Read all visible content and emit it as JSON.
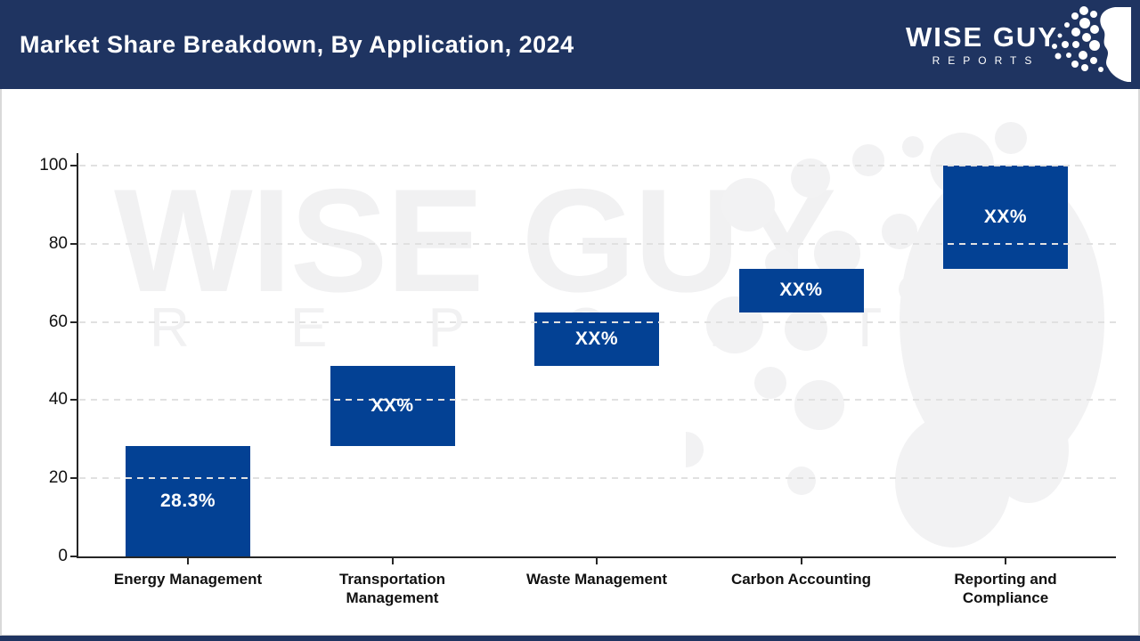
{
  "header": {
    "title": "Market Share Breakdown, By Application, 2024",
    "logo_line1": "WISE GUY",
    "logo_line2": "REPORTS"
  },
  "watermark": {
    "line1": "WISE GUY",
    "line2": "R E P O R T S"
  },
  "colors": {
    "header_bg": "#1f3461",
    "bar": "#034194",
    "axis": "#262626",
    "gridline": "#e1e1e1",
    "bar_label_text": "#ffffff",
    "watermark": "#f1f1f2"
  },
  "chart_data": {
    "type": "bar",
    "subtype": "waterfall",
    "title": "Market Share Breakdown, By Application, 2024",
    "categories": [
      "Energy Management",
      "Transportation\nManagement",
      "Waste Management",
      "Carbon Accounting",
      "Reporting and\nCompliance"
    ],
    "segments": [
      {
        "category": "Energy Management",
        "start": 0,
        "end": 28.3,
        "label": "28.3%"
      },
      {
        "category": "Transportation Management",
        "start": 28.3,
        "end": 48.7,
        "label": "XX%"
      },
      {
        "category": "Waste Management",
        "start": 48.7,
        "end": 62.4,
        "label": "XX%"
      },
      {
        "category": "Carbon Accounting",
        "start": 62.4,
        "end": 73.6,
        "label": "XX%"
      },
      {
        "category": "Reporting and Compliance",
        "start": 73.6,
        "end": 100,
        "label": "XX%"
      }
    ],
    "xlabel": "",
    "ylabel": "",
    "yticks": [
      0,
      20,
      40,
      60,
      80,
      100
    ],
    "ylim": [
      0,
      103
    ],
    "grid": "horizontal-dashed",
    "legend": "none"
  }
}
